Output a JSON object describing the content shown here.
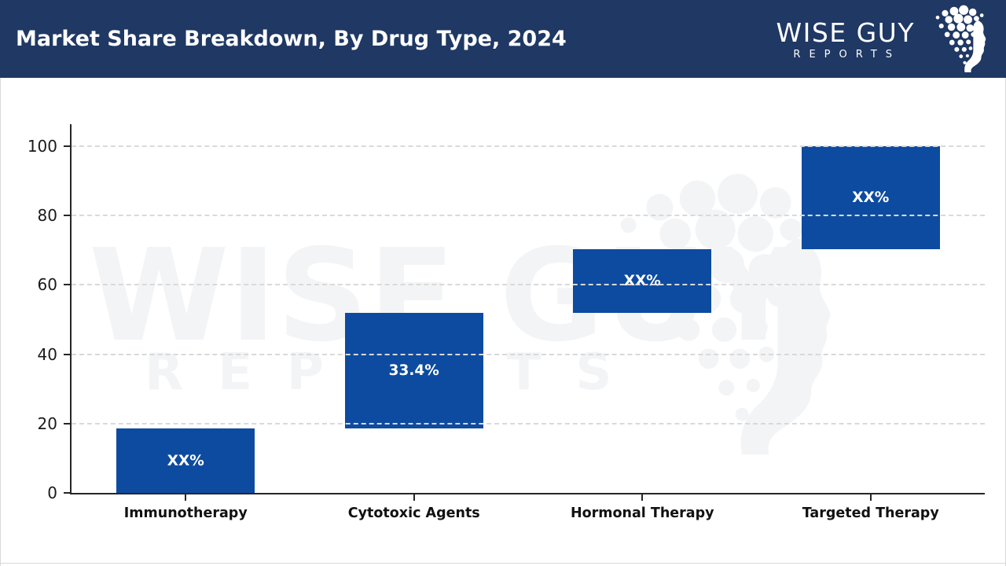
{
  "header": {
    "title": "Market Share Breakdown, By Drug Type, 2024",
    "logo": {
      "wordmark": "WISE GUY",
      "subtext": "REPORTS"
    }
  },
  "watermark": {
    "wordmark": "WISE GUY",
    "subtext": "REPORTS"
  },
  "colors": {
    "header_bg": "#1f3864",
    "bar": "#0d4ba0",
    "grid": "#d9d9d9",
    "axis": "#262626",
    "watermark": "#f3f4f6"
  },
  "chart_data": {
    "type": "bar",
    "subtype": "floating_segment_waterfall",
    "title": "Market Share Breakdown, By Drug Type, 2024",
    "categories": [
      "Immunotherapy",
      "Cytotoxic Agents",
      "Hormonal Therapy",
      "Targeted Therapy"
    ],
    "bars": [
      {
        "category": "Immunotherapy",
        "label": "XX%",
        "start": 0,
        "end": 18.5
      },
      {
        "category": "Cytotoxic Agents",
        "label": "33.4%",
        "start": 18.6,
        "end": 52.0
      },
      {
        "category": "Hormonal Therapy",
        "label": "XX%",
        "start": 52.0,
        "end": 70.3
      },
      {
        "category": "Targeted Therapy",
        "label": "XX%",
        "start": 70.3,
        "end": 100
      }
    ],
    "ylabel": "",
    "xlabel": "",
    "ylim": [
      0,
      106
    ],
    "yticks": [
      0,
      20,
      40,
      60,
      80,
      100
    ],
    "grid": "horizontal-dashed",
    "legend": "none"
  }
}
